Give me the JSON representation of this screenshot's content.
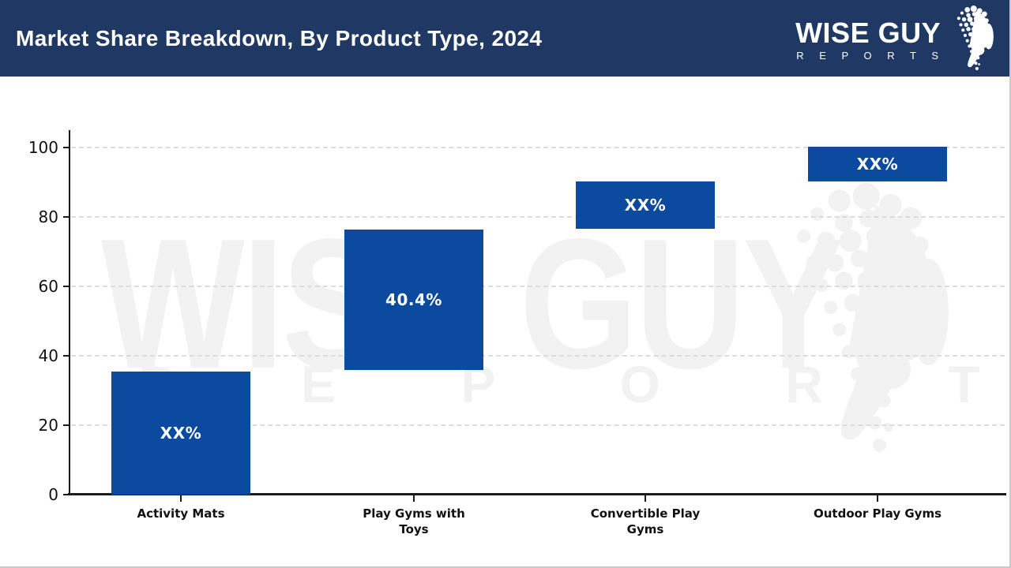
{
  "page": {
    "background": "#ffffff",
    "border_color": "#c9c9c9"
  },
  "header": {
    "bg_color": "#1f3864",
    "title": "Market Share Breakdown, By Product Type, 2024",
    "logo": {
      "line1": "WISE GUY",
      "line2": "R E P O R T S"
    }
  },
  "watermark": {
    "line1": "WISE GUY",
    "line2": "R E P O R T S"
  },
  "chart_data": {
    "type": "bar",
    "subtype": "waterfall",
    "title": "Market Share Breakdown, By Product Type, 2024",
    "xlabel": "",
    "ylabel": "",
    "ylim": [
      0,
      100
    ],
    "yticks": [
      0,
      20,
      40,
      60,
      80,
      100
    ],
    "grid": "horizontal-dashed",
    "grid_color": "#dcdcdc",
    "bar_color": "#0b4a9f",
    "value_label_color": "#ffffff",
    "categories": [
      "Activity Mats",
      "Play Gyms with Toys",
      "Convertible Play Gyms",
      "Outdoor Play Gyms"
    ],
    "bars": [
      {
        "category": "Activity Mats",
        "label_lines": [
          "Activity Mats"
        ],
        "start": 0,
        "end": 35.5,
        "value": 35.5,
        "value_label": "XX%"
      },
      {
        "category": "Play Gyms with Toys",
        "label_lines": [
          "Play Gyms with",
          "Toys"
        ],
        "start": 36,
        "end": 76.4,
        "value": 40.4,
        "value_label": "40.4%"
      },
      {
        "category": "Convertible Play Gyms",
        "label_lines": [
          "Convertible Play",
          "Gyms"
        ],
        "start": 76.6,
        "end": 90.2,
        "value": 13.6,
        "value_label": "XX%"
      },
      {
        "category": "Outdoor Play Gyms",
        "label_lines": [
          "Outdoor Play Gyms"
        ],
        "start": 90.2,
        "end": 100.2,
        "value": 10,
        "value_label": "XX%"
      }
    ]
  }
}
